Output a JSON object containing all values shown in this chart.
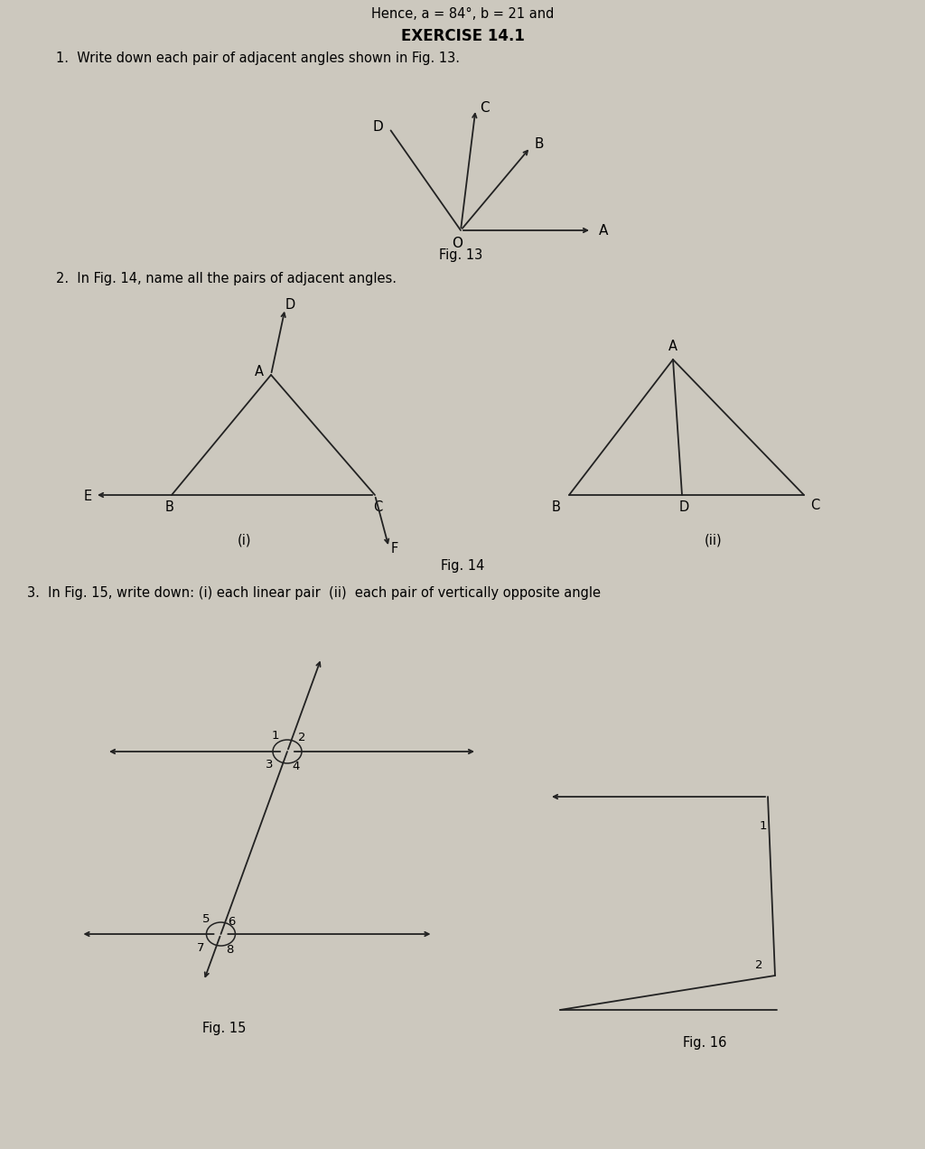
{
  "bg_color": "#ccc8be",
  "title_text": "EXERCISE 14.1",
  "header_text": "Hence, a = 84°, b = 21 and",
  "q1_text": "1.  Write down each pair of adjacent angles shown in Fig. 13.",
  "q2_text": "2.  In Fig. 14, name all the pairs of adjacent angles.",
  "q3_text": "3.  In Fig. 15, write down: (i) each linear pair  (ii)  each pair of vertically opposite angle",
  "fig13_caption": "Fig. 13",
  "fig14_caption": "Fig. 14",
  "fig15_caption": "Fig. 15",
  "fig16_caption": "Fig. 16",
  "fig14i_caption": "(i)",
  "fig14ii_caption": "(ii)"
}
